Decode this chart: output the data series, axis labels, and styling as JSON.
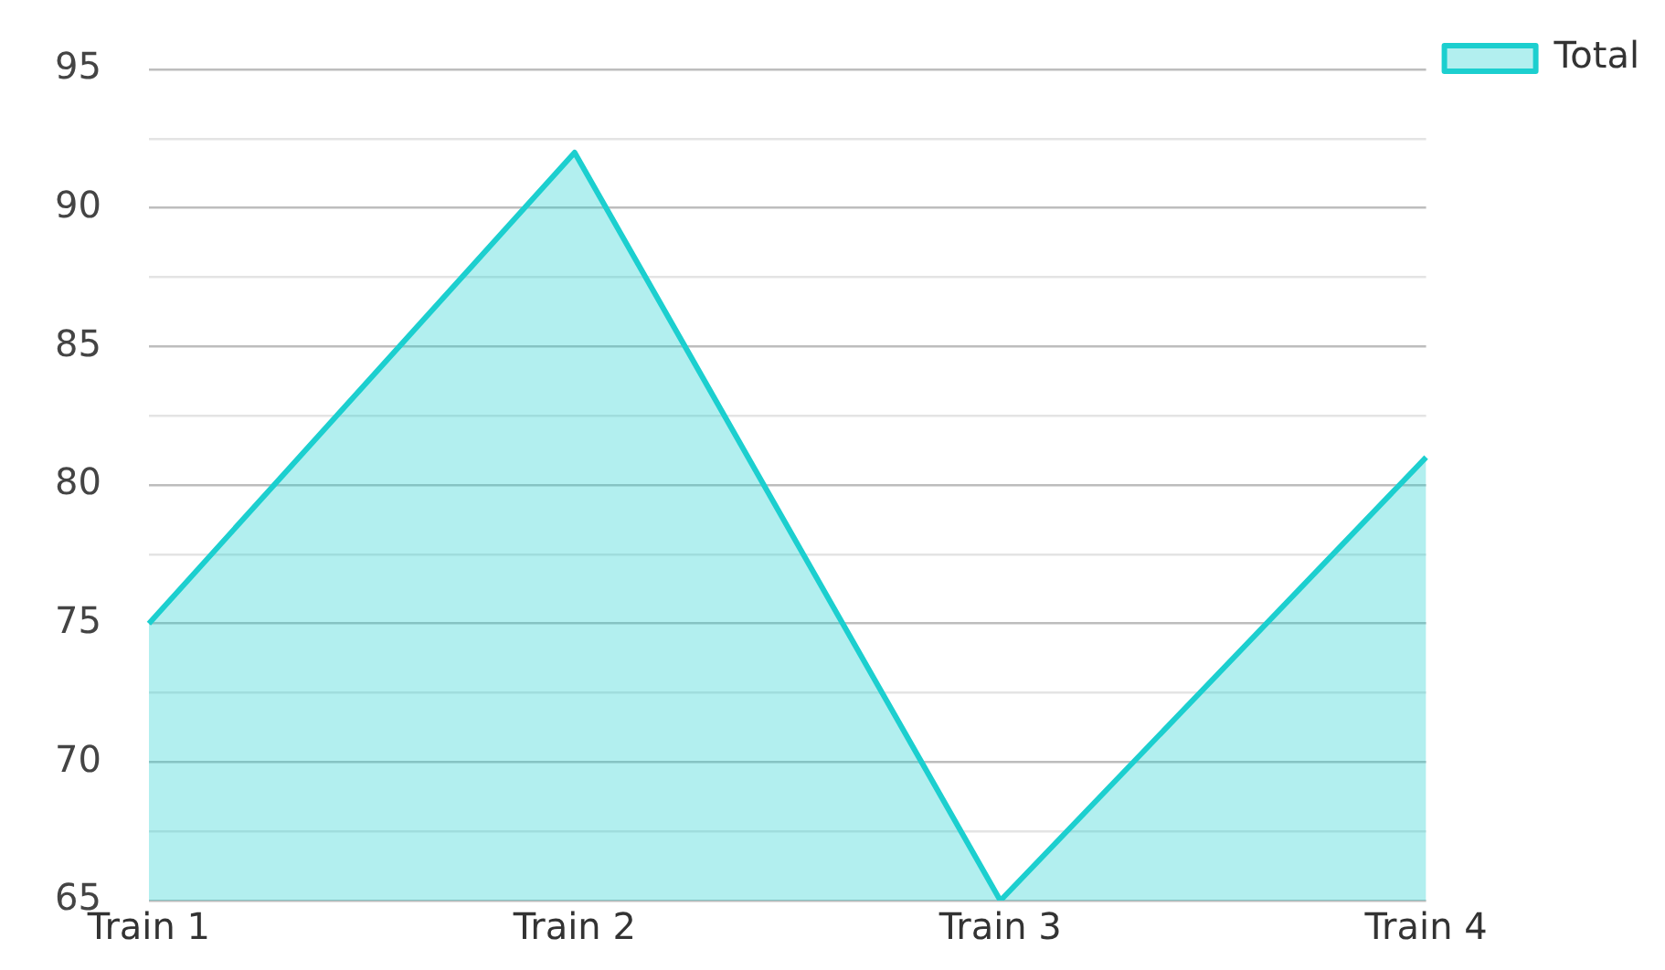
{
  "chart_data": {
    "type": "area",
    "categories": [
      "Train 1",
      "Train 2",
      "Train 3",
      "Train 4"
    ],
    "series": [
      {
        "name": "Total",
        "color": "#1ccfcf",
        "values": [
          75,
          92,
          65,
          81
        ]
      }
    ],
    "ylim": [
      65,
      95
    ],
    "yticks": [
      65,
      {
        "value": 67.5,
        "label": null
      },
      70,
      {
        "value": 72.5,
        "label": null
      },
      75,
      {
        "value": 77.5,
        "label": null
      },
      80,
      {
        "value": 82.5,
        "label": null
      },
      85,
      {
        "value": 87.5,
        "label": null
      },
      90,
      {
        "value": 92.5,
        "label": null
      },
      95
    ],
    "grid": "y",
    "legend": "top right",
    "marker": "none"
  }
}
